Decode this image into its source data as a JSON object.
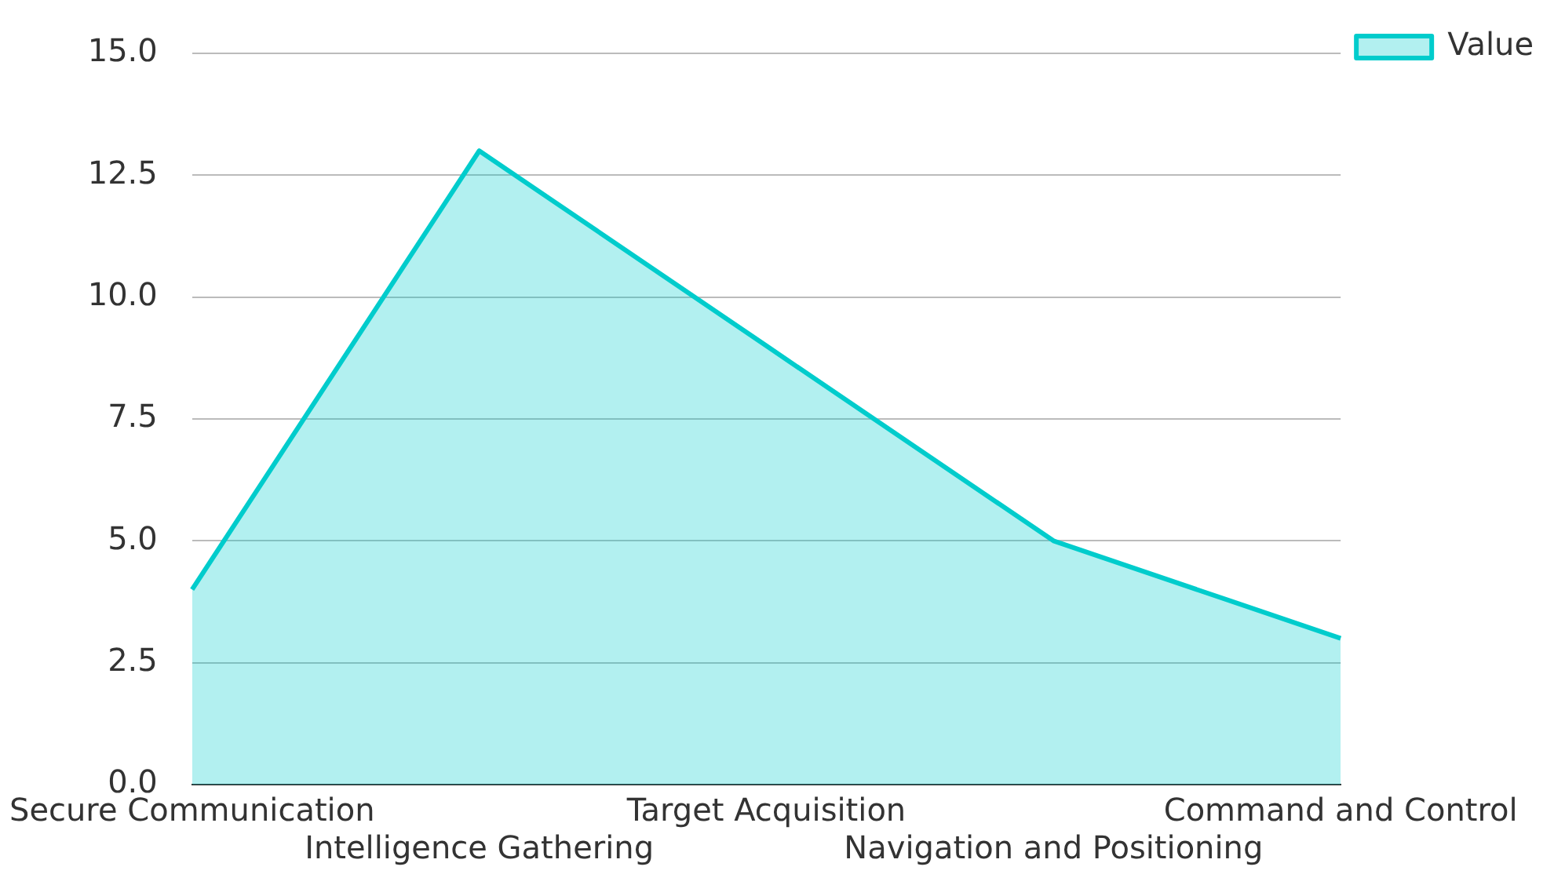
{
  "chart_data": {
    "type": "area",
    "categories": [
      "Secure Communication",
      "Intelligence Gathering",
      "Target Acquisition",
      "Navigation and Positioning",
      "Command and Control"
    ],
    "series": [
      {
        "name": "Value",
        "color": "#00cccc",
        "values": [
          4,
          13,
          9,
          5,
          3
        ]
      }
    ],
    "ylim": [
      0,
      15
    ],
    "yticks": [
      {
        "value": 0,
        "label": "0.0"
      },
      {
        "value": 2.5,
        "label": "2.5"
      },
      {
        "value": 5,
        "label": "5.0"
      },
      {
        "value": 7.5,
        "label": "7.5"
      },
      {
        "value": 10,
        "label": "10.0"
      },
      {
        "value": 12.5,
        "label": "12.5"
      },
      {
        "value": 15,
        "label": "15.0"
      }
    ],
    "grid": "y",
    "legend": "top right"
  }
}
